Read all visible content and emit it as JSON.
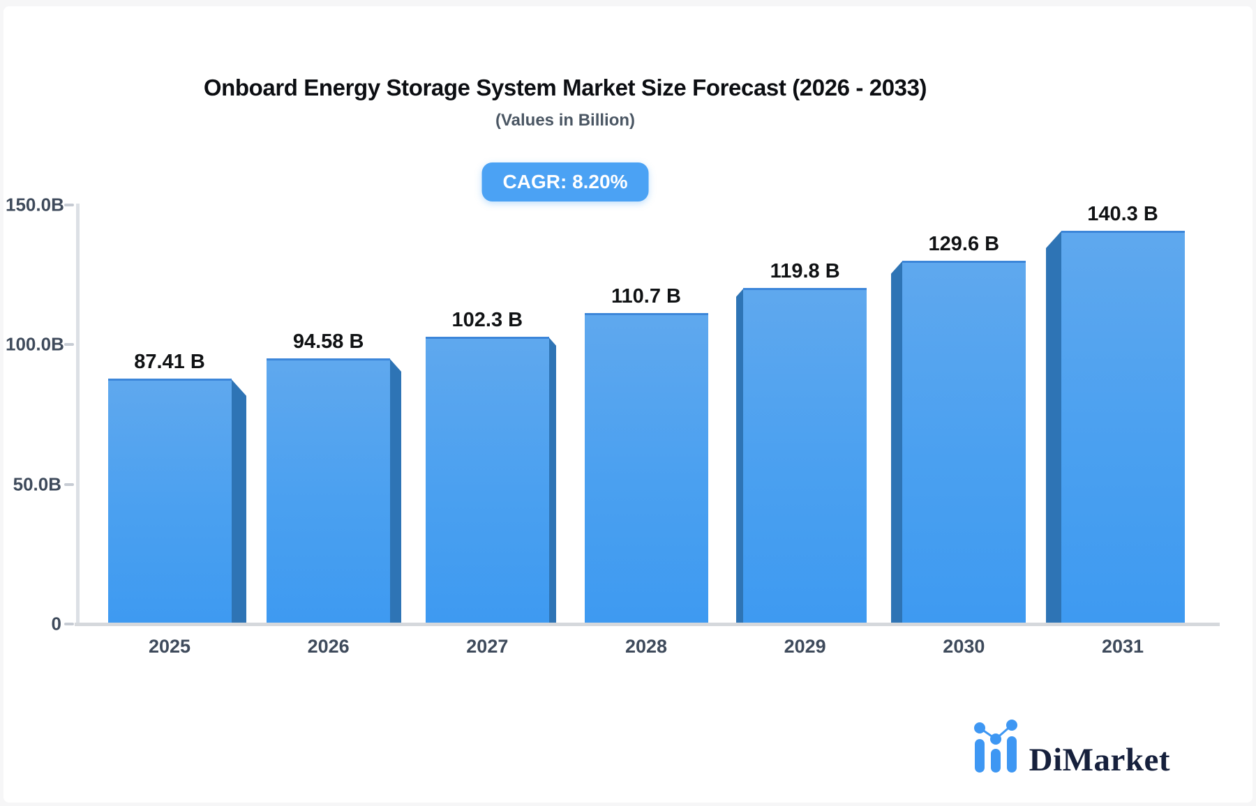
{
  "page": {
    "background": "#f6f6f7",
    "card_background": "#ffffff"
  },
  "header": {
    "title": "Onboard Energy Storage System Market Size Forecast (2026 - 2033)",
    "subtitle": "(Values in Billion)",
    "cagr_badge": "CAGR: 8.20%",
    "badge_color": "#4ba2f4"
  },
  "chart_data": {
    "type": "bar",
    "title": "Onboard Energy Storage System Market Size Forecast (2026 - 2033)",
    "subtitle": "(Values in Billion)",
    "categories": [
      "2025",
      "2026",
      "2027",
      "2028",
      "2029",
      "2030",
      "2031"
    ],
    "values": [
      87.41,
      94.58,
      102.3,
      110.7,
      119.8,
      129.6,
      140.3
    ],
    "value_labels": [
      "87.41 B",
      "94.58 B",
      "102.3 B",
      "110.7 B",
      "119.8 B",
      "129.6 B",
      "140.3 B"
    ],
    "unit": "Billion",
    "cagr_percent": 8.2,
    "xlabel": "",
    "ylabel": "",
    "ylim": [
      0,
      150
    ],
    "y_ticks": [
      "150.0B",
      "100.0B",
      "50.0B",
      "0"
    ],
    "y_tick_values": [
      150,
      100,
      50,
      0
    ],
    "grid": false,
    "legend": false,
    "style": "3d-perspective-bars",
    "bar_color_top": "#5fa8ee",
    "bar_color_bottom": "#3e9af1",
    "bar_side_color": "#2e74b5"
  },
  "footer": {
    "brand": "DiMarket",
    "logo_color": "#3e97f3"
  }
}
